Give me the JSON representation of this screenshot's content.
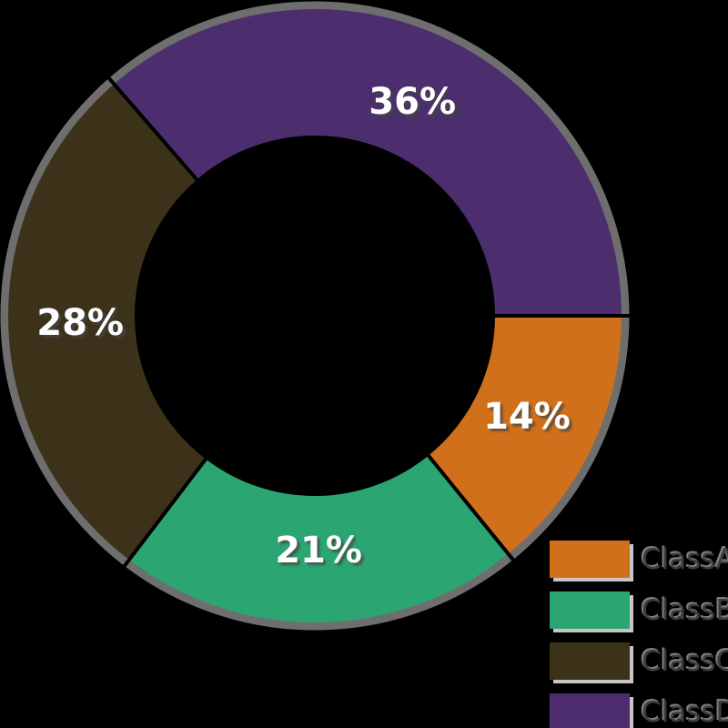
{
  "figure": {
    "background": "#000000"
  },
  "chart_data": {
    "type": "pie",
    "subtype": "donut",
    "title": "",
    "labels": [
      "ClassA",
      "ClassB",
      "ClassC",
      "ClassD"
    ],
    "values": [
      14,
      21,
      28,
      36
    ],
    "percent_labels": [
      "14%",
      "21%",
      "28%",
      "36%"
    ],
    "colors": [
      "#d0701a",
      "#2ba673",
      "#3c321a",
      "#4c2e6e"
    ],
    "slice_label_color": "#ffffff",
    "outline_color": "#6e6e6e",
    "gap_color": "#000000",
    "start_angle_deg": 0,
    "direction": "clockwise",
    "inner_radius_ratio": 0.59,
    "legend": {
      "position": "lower-right",
      "text_color": "#3d3d3d",
      "items": [
        "ClassA",
        "ClassB",
        "ClassC",
        "ClassD"
      ]
    }
  }
}
